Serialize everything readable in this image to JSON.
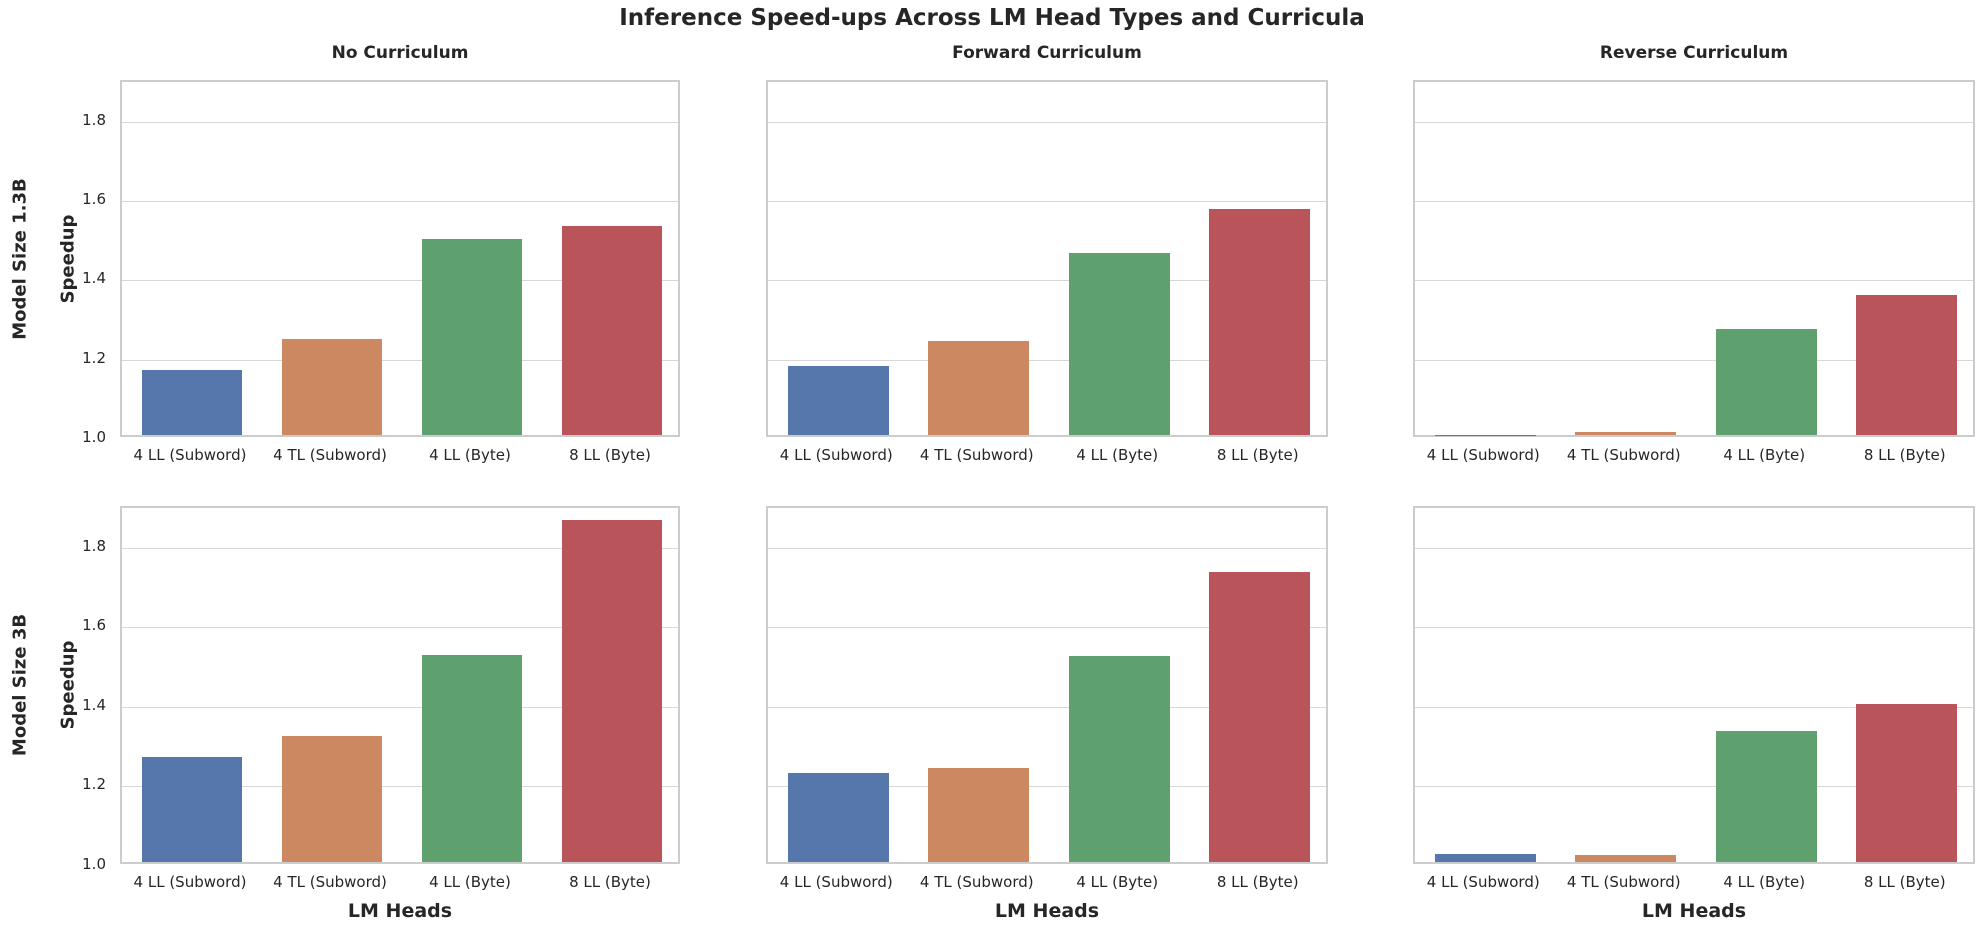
{
  "title": "Inference Speed-ups Across LM Head Types and Curricula",
  "figure": {
    "columns": [
      "No Curriculum",
      "Forward Curriculum",
      "Reverse Curriculum"
    ],
    "rows": [
      "Model Size 1.3B",
      "Model Size 3B"
    ],
    "ylabel": "Speedup",
    "xlabel": "LM Heads",
    "categories": [
      "4 LL (Subword)",
      "4 TL (Subword)",
      "4 LL (Byte)",
      "8 LL (Byte)"
    ],
    "palette": [
      "#5577AB",
      "#CC8961",
      "#5FA06F",
      "#B9545B"
    ],
    "ytick_labels": [
      "1.0",
      "1.2",
      "1.4",
      "1.6",
      "1.8"
    ]
  },
  "chart_data": [
    {
      "type": "bar",
      "title": "No Curriculum",
      "row": "Model Size 1.3B",
      "categories": [
        "4 LL (Subword)",
        "4 TL (Subword)",
        "4 LL (Byte)",
        "8 LL (Byte)"
      ],
      "values": [
        1.165,
        1.243,
        1.494,
        1.528
      ],
      "xlabel": "",
      "ylabel": "Speedup",
      "ylim": [
        1.0,
        1.9
      ],
      "yticks": [
        1.0,
        1.2,
        1.4,
        1.6,
        1.8
      ],
      "grid": true,
      "legend": "none"
    },
    {
      "type": "bar",
      "title": "Forward Curriculum",
      "row": "Model Size 1.3B",
      "categories": [
        "4 LL (Subword)",
        "4 TL (Subword)",
        "4 LL (Byte)",
        "8 LL (Byte)"
      ],
      "values": [
        1.175,
        1.238,
        1.459,
        1.571
      ],
      "xlabel": "",
      "ylabel": "Speedup",
      "ylim": [
        1.0,
        1.9
      ],
      "yticks": [
        1.0,
        1.2,
        1.4,
        1.6,
        1.8
      ],
      "grid": true,
      "legend": "none"
    },
    {
      "type": "bar",
      "title": "Reverse Curriculum",
      "row": "Model Size 1.3B",
      "categories": [
        "4 LL (Subword)",
        "4 TL (Subword)",
        "4 LL (Byte)",
        "8 LL (Byte)"
      ],
      "values": [
        1.001,
        1.008,
        1.268,
        1.354
      ],
      "xlabel": "",
      "ylabel": "Speedup",
      "ylim": [
        1.0,
        1.9
      ],
      "yticks": [
        1.0,
        1.2,
        1.4,
        1.6,
        1.8
      ],
      "grid": true,
      "legend": "none"
    },
    {
      "type": "bar",
      "title": "No Curriculum",
      "row": "Model Size 3B",
      "categories": [
        "4 LL (Subword)",
        "4 TL (Subword)",
        "4 LL (Byte)",
        "8 LL (Byte)"
      ],
      "values": [
        1.263,
        1.318,
        1.521,
        1.859
      ],
      "xlabel": "LM Heads",
      "ylabel": "Speedup",
      "ylim": [
        1.0,
        1.9
      ],
      "yticks": [
        1.0,
        1.2,
        1.4,
        1.6,
        1.8
      ],
      "grid": true,
      "legend": "none"
    },
    {
      "type": "bar",
      "title": "Forward Curriculum",
      "row": "Model Size 3B",
      "categories": [
        "4 LL (Subword)",
        "4 TL (Subword)",
        "4 LL (Byte)",
        "8 LL (Byte)"
      ],
      "values": [
        1.225,
        1.237,
        1.519,
        1.729
      ],
      "xlabel": "LM Heads",
      "ylabel": "Speedup",
      "ylim": [
        1.0,
        1.9
      ],
      "yticks": [
        1.0,
        1.2,
        1.4,
        1.6,
        1.8
      ],
      "grid": true,
      "legend": "none"
    },
    {
      "type": "bar",
      "title": "Reverse Curriculum",
      "row": "Model Size 3B",
      "categories": [
        "4 LL (Subword)",
        "4 TL (Subword)",
        "4 LL (Byte)",
        "8 LL (Byte)"
      ],
      "values": [
        1.02,
        1.018,
        1.33,
        1.397
      ],
      "xlabel": "LM Heads",
      "ylabel": "Speedup",
      "ylim": [
        1.0,
        1.9
      ],
      "yticks": [
        1.0,
        1.2,
        1.4,
        1.6,
        1.8
      ],
      "grid": true,
      "legend": "none"
    }
  ]
}
